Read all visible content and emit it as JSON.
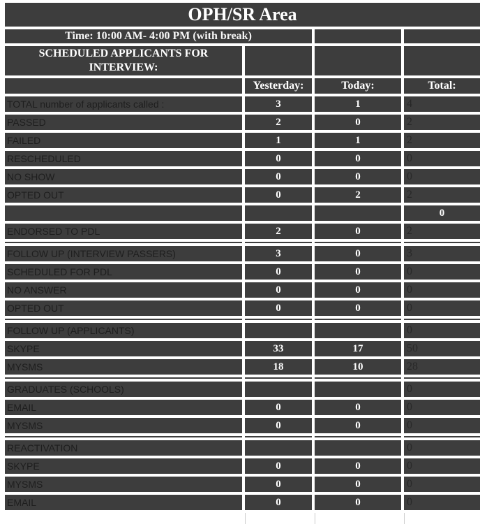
{
  "header": {
    "title": "OPH/SR Area",
    "time_label": "Time: 10:00 AM- 4:00 PM (with break)",
    "section_label": "SCHEDULED APPLICANTS FOR INTERVIEW:"
  },
  "columns": {
    "yesterday": "Yesterday:",
    "today": "Today:",
    "total": "Total:"
  },
  "rows": [
    {
      "type": "data",
      "label": "TOTAL number of applicants called :",
      "yesterday": "3",
      "today": "1",
      "total": "4"
    },
    {
      "type": "data",
      "label": "PASSED",
      "yesterday": "2",
      "today": "0",
      "total": "2"
    },
    {
      "type": "data",
      "label": "FAILED",
      "yesterday": "1",
      "today": "1",
      "total": "2"
    },
    {
      "type": "data",
      "label": "RESCHEDULED",
      "yesterday": "0",
      "today": "0",
      "total": "0"
    },
    {
      "type": "data",
      "label": "NO SHOW",
      "yesterday": "0",
      "today": "0",
      "total": "0"
    },
    {
      "type": "data",
      "label": "OPTED OUT",
      "yesterday": "0",
      "today": "2",
      "total": "2"
    },
    {
      "type": "data",
      "label": "",
      "yesterday": "",
      "today": "",
      "total": "0",
      "total_highlight": true
    },
    {
      "type": "data",
      "label": "ENDORSED TO PDL",
      "yesterday": "2",
      "today": "0",
      "total": "2"
    },
    {
      "type": "spacer"
    },
    {
      "type": "data",
      "label": "FOLLOW UP (INTERVIEW PASSERS)",
      "yesterday": "3",
      "today": "0",
      "total": "3"
    },
    {
      "type": "data",
      "label": "SCHEDULED FOR PDL",
      "yesterday": "0",
      "today": "0",
      "total": "0"
    },
    {
      "type": "data",
      "label": "NO ANSWER",
      "yesterday": "0",
      "today": "0",
      "total": "0"
    },
    {
      "type": "data",
      "label": "OPTED OUT",
      "yesterday": "0",
      "today": "0",
      "total": "0"
    },
    {
      "type": "spacer"
    },
    {
      "type": "data",
      "label": "FOLLOW UP (APPLICANTS)",
      "yesterday": "",
      "today": "",
      "total": "0"
    },
    {
      "type": "data",
      "label": "SKYPE",
      "yesterday": "33",
      "today": "17",
      "total": "50"
    },
    {
      "type": "data",
      "label": "MYSMS",
      "yesterday": "18",
      "today": "10",
      "total": "28"
    },
    {
      "type": "spacer"
    },
    {
      "type": "data",
      "label": "GRADUATES (SCHOOLS)",
      "yesterday": "",
      "today": "",
      "total": "0"
    },
    {
      "type": "data",
      "label": "EMAIL",
      "yesterday": "0",
      "today": "0",
      "total": "0"
    },
    {
      "type": "data",
      "label": "MYSMS",
      "yesterday": "0",
      "today": "0",
      "total": "0"
    },
    {
      "type": "spacer"
    },
    {
      "type": "data",
      "label": "REACTIVATION",
      "yesterday": "",
      "today": "",
      "total": "0"
    },
    {
      "type": "data",
      "label": "SKYPE",
      "yesterday": "0",
      "today": "0",
      "total": "0"
    },
    {
      "type": "data",
      "label": "MYSMS",
      "yesterday": "0",
      "today": "0",
      "total": "0"
    },
    {
      "type": "data",
      "label": "EMAIL",
      "yesterday": "0",
      "today": "0",
      "total": "0"
    }
  ],
  "colors": {
    "cell_background": "#3d3d3d",
    "label_text": "#1e1e1e",
    "value_text": "#ffffff",
    "total_text": "#282828",
    "page_background": "#ffffff",
    "grid_line": "#c9c9c9"
  }
}
